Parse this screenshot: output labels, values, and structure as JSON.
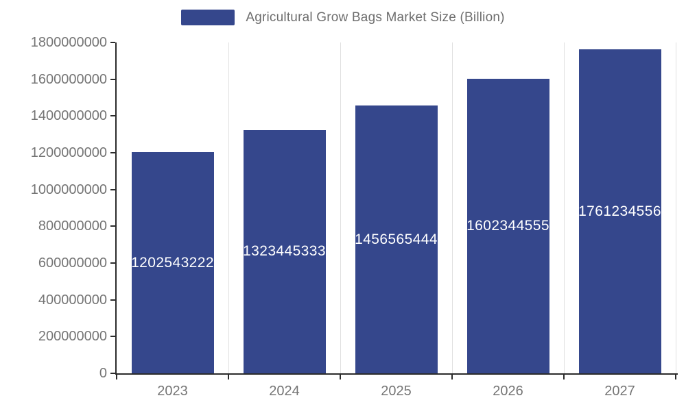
{
  "legend": {
    "label": "Agricultural Grow Bags Market Size (Billion)"
  },
  "colors": {
    "bar": "#35478c",
    "bar_label": "#ffffff",
    "axis": "#2b2b2b",
    "grid": "#e0e0e0",
    "tick_text": "#757575"
  },
  "chart_data": {
    "type": "bar",
    "title": "Agricultural Grow Bags Market Size (Billion)",
    "categories": [
      "2023",
      "2024",
      "2025",
      "2026",
      "2027"
    ],
    "values": [
      1202543222,
      1323445333,
      1456565444,
      1602344555,
      1761234556
    ],
    "xlabel": "",
    "ylabel": "",
    "ylim": [
      0,
      1800000000
    ],
    "y_tick_step": 200000000,
    "y_tick_labels": [
      "0",
      "200000000",
      "400000000",
      "600000000",
      "800000000",
      "1000000000",
      "1200000000",
      "1400000000",
      "1600000000",
      "1800000000"
    ],
    "grid": "vertical-split-lines",
    "legend_position": "top",
    "bar_color": "#35478c",
    "value_label_color": "#ffffff"
  }
}
